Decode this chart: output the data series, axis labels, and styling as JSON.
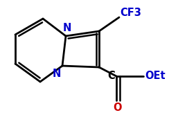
{
  "bg_color": "#ffffff",
  "bond_color": "#000000",
  "N_color": "#0000cc",
  "O_color": "#cc0000",
  "label_CF3": "CF3",
  "label_N1": "N",
  "label_N2": "N",
  "label_C": "C",
  "label_OEt": "OEt",
  "label_O": "O",
  "line_width": 2.0,
  "font_size": 10.5,
  "figsize": [
    2.57,
    1.79
  ],
  "dpi": 100
}
